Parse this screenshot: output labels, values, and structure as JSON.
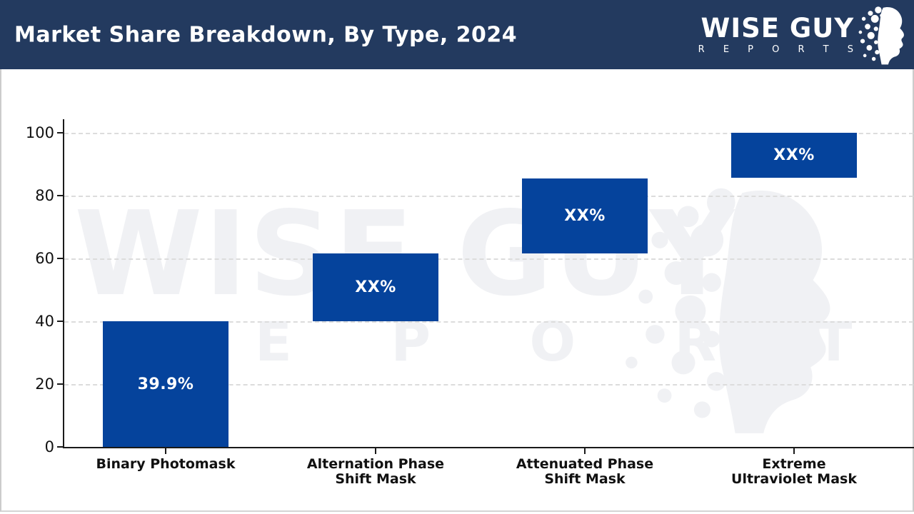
{
  "header": {
    "title": "Market Share Breakdown, By Type, 2024",
    "logo": {
      "name": "WISE GUY",
      "subname": "R E P O R T S"
    }
  },
  "watermark": {
    "line1": "WISE GUY.",
    "line2": "R E P O R T S"
  },
  "chart_data": {
    "type": "bar",
    "variant": "waterfall",
    "title": "Market Share Breakdown, By Type, 2024",
    "categories": [
      "Binary Photomask",
      "Alternation Phase\nShift Mask",
      "Attenuated Phase\nShift Mask",
      "Extreme\nUltraviolet Mask"
    ],
    "segments": [
      {
        "category": "Binary Photomask",
        "start": 0,
        "end": 39.9,
        "label": "39.9%"
      },
      {
        "category": "Alternation Phase Shift Mask",
        "start": 39.9,
        "end": 61.5,
        "label": "XX%"
      },
      {
        "category": "Attenuated Phase Shift Mask",
        "start": 61.5,
        "end": 85.4,
        "label": "XX%"
      },
      {
        "category": "Extreme Ultraviolet Mask",
        "start": 85.7,
        "end": 100,
        "label": "XX%"
      }
    ],
    "yticks": [
      0,
      20,
      40,
      60,
      80,
      100
    ],
    "ylim": [
      0,
      104
    ],
    "xlabel": "",
    "ylabel": "",
    "legend": "none",
    "grid": {
      "horizontal": true,
      "style": "dashed"
    },
    "colors": {
      "bar": "#05439c",
      "bar_label": "#ffffff",
      "axis": "#1a1a1a",
      "grid": "#dcdcdc",
      "header_bg": "#233a5f",
      "watermark": "#f0f1f4"
    }
  }
}
